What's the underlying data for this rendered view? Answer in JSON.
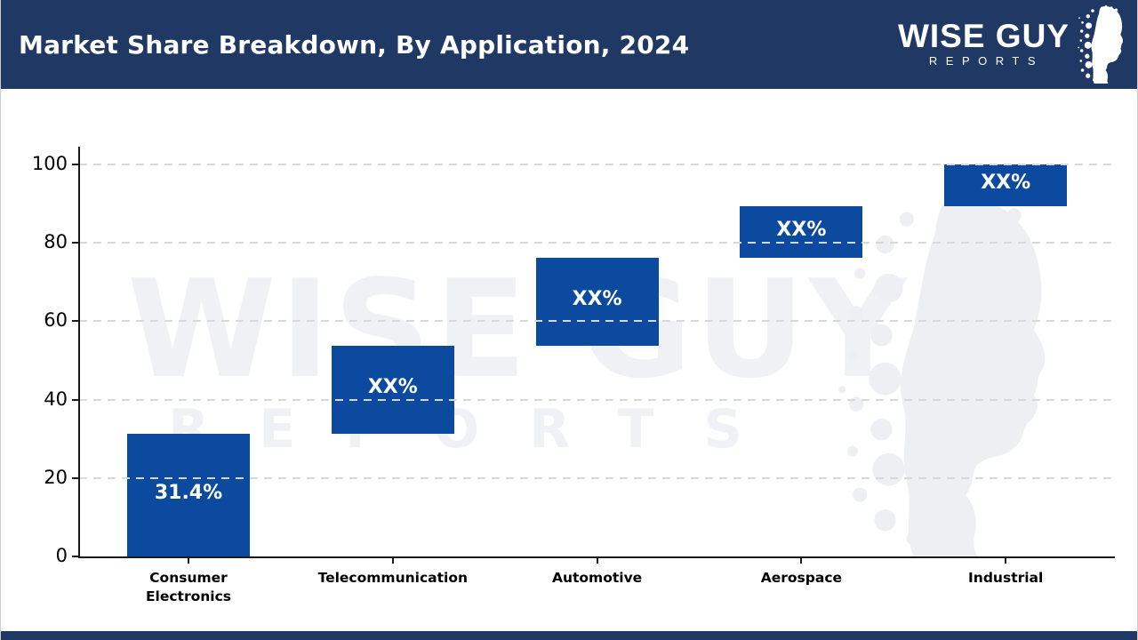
{
  "header": {
    "title": "Market Share Breakdown, By Application, 2024",
    "logo": {
      "line1": "WISE GUY",
      "line2": "REPORTS"
    },
    "bg_color": "#1f3864"
  },
  "watermark": {
    "line1": "WISE GUY",
    "line2": "REPORTS",
    "color": "#f0f1f4"
  },
  "chart_data": {
    "type": "bar",
    "subtype": "waterfall",
    "title": "Market Share Breakdown, By Application, 2024",
    "categories": [
      "Consumer Electronics",
      "Telecommunication",
      "Automotive",
      "Aerospace",
      "Industrial"
    ],
    "category_lines": [
      [
        "Consumer",
        "Electronics"
      ],
      [
        "Telecommunication"
      ],
      [
        "Automotive"
      ],
      [
        "Aerospace"
      ],
      [
        "Industrial"
      ]
    ],
    "segments": [
      {
        "category": "Consumer Electronics",
        "start": 0,
        "end": 31.4,
        "label": "31.4%"
      },
      {
        "category": "Telecommunication",
        "start": 31.4,
        "end": 53.8,
        "label": "XX%"
      },
      {
        "category": "Automotive",
        "start": 53.8,
        "end": 76.2,
        "label": "XX%"
      },
      {
        "category": "Aerospace",
        "start": 76.2,
        "end": 89.4,
        "label": "XX%"
      },
      {
        "category": "Industrial",
        "start": 89.4,
        "end": 100,
        "label": "XX%"
      }
    ],
    "ylim": [
      0,
      100
    ],
    "yticks": [
      0,
      20,
      40,
      60,
      80,
      100
    ],
    "xlabel": "",
    "ylabel": "",
    "grid": {
      "horizontal": true,
      "style": "dashed",
      "color": "#d9d9d9",
      "drawn_over_bars": true
    },
    "legend": "none",
    "bar_color": "#0b4a9e",
    "bar_label_color": "#ffffff",
    "axis_color": "#1a1a1a"
  }
}
